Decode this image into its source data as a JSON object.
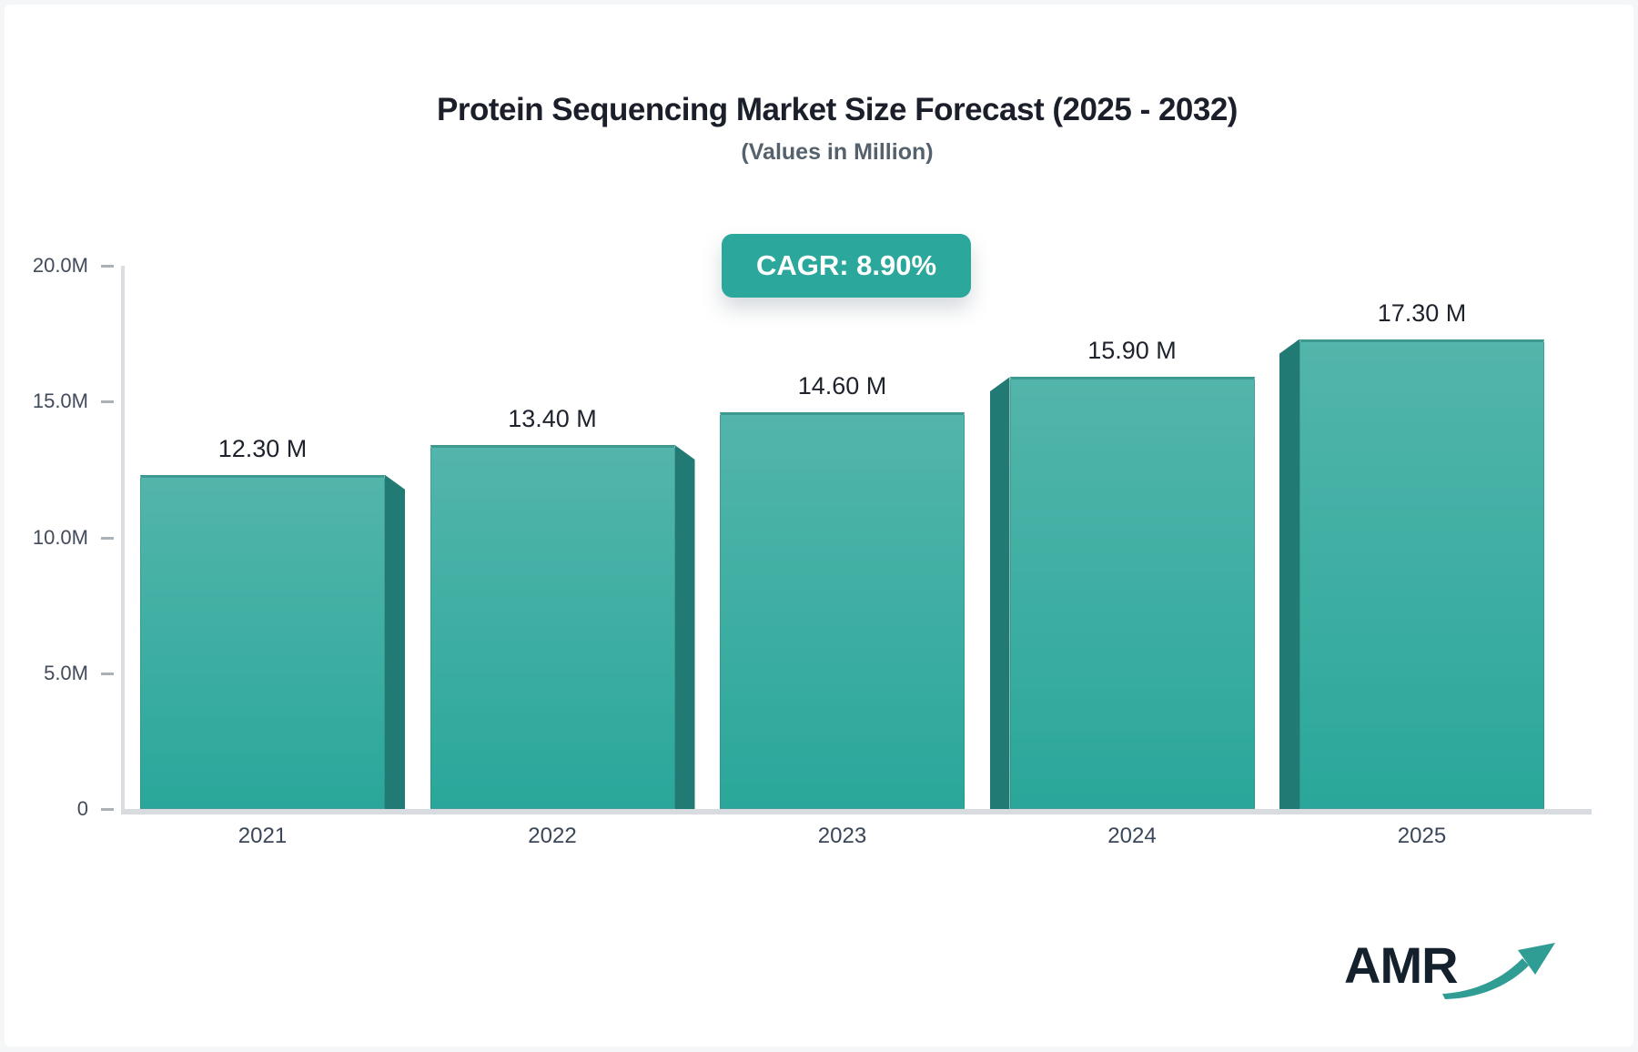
{
  "header": {
    "title": "Protein Sequencing Market Size Forecast (2025 - 2032)",
    "subtitle": "(Values in Million)"
  },
  "badge": {
    "label": "CAGR: 8.90%",
    "color": "#2ca79c"
  },
  "chart_data": {
    "type": "bar",
    "title": "Protein Sequencing Market Size Forecast (2025 - 2032)",
    "subtitle": "(Values in Million)",
    "categories": [
      "2021",
      "2022",
      "2023",
      "2024",
      "2025"
    ],
    "values": [
      12.3,
      13.4,
      14.6,
      15.9,
      17.3
    ],
    "value_labels": [
      "12.30 M",
      "13.40 M",
      "14.60 M",
      "15.90 M",
      "17.30 M"
    ],
    "unit": "Million",
    "xlabel": "",
    "ylabel": "",
    "ylim": [
      0,
      20
    ],
    "y_ticks": [
      {
        "label": "20.0M",
        "value": 20
      },
      {
        "label": "15.0M",
        "value": 15
      },
      {
        "label": "10.0M",
        "value": 10
      },
      {
        "label": "5.0M",
        "value": 5
      },
      {
        "label": "0",
        "value": 0
      }
    ],
    "grid": false,
    "legend": null,
    "bar_color_top": "#53b5ab",
    "bar_color_bottom": "#2aa79a",
    "bar_side_color": "#217a73",
    "extrusion_sides": [
      "right",
      "right",
      "none",
      "left",
      "left"
    ]
  },
  "logo": {
    "text": "AMR",
    "arrow_icon": "growth-arrow-icon",
    "text_color": "#15202d",
    "arrow_color": "#2f9d94"
  }
}
